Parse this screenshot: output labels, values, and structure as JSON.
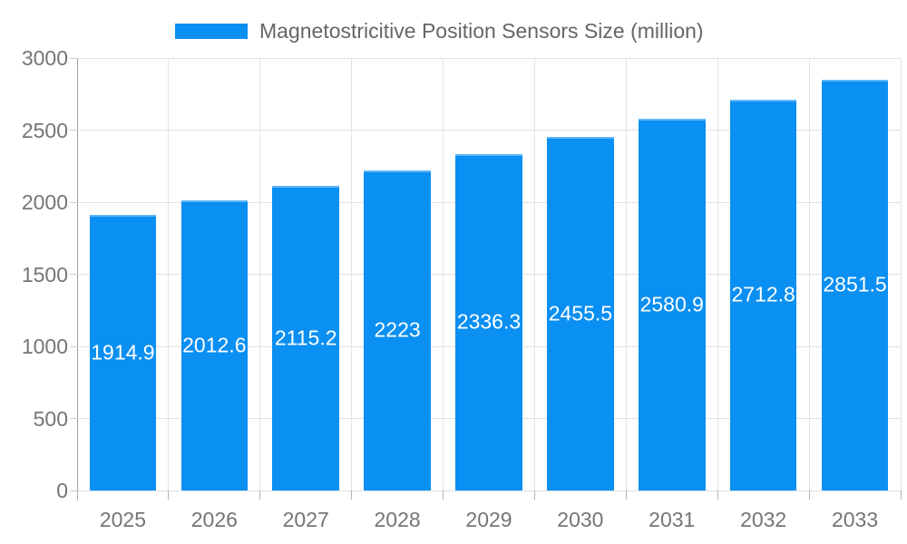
{
  "colors": {
    "accent": "#0a8ff2",
    "bar_value_text": "#ffffff",
    "axis_text": "#757575",
    "legend_text": "#666666",
    "gridline": "#e0e0e0",
    "axis_line": "#9e9e9e",
    "background": "#ffffff"
  },
  "chart_data": {
    "type": "bar",
    "title": "",
    "legend": {
      "position": "top",
      "entries": [
        {
          "label": "Magnetostricitive Position Sensors Size (million)",
          "color": "#0a8ff2",
          "marker": "rect"
        }
      ]
    },
    "categories": [
      "2025",
      "2026",
      "2027",
      "2028",
      "2029",
      "2030",
      "2031",
      "2032",
      "2033"
    ],
    "series": [
      {
        "name": "Magnetostricitive Position Sensors Size (million)",
        "color": "#0a8ff2",
        "values": [
          1914.9,
          2012.6,
          2115.2,
          2223,
          2336.3,
          2455.5,
          2580.9,
          2712.8,
          2851.5
        ],
        "value_labels": [
          "1914.9",
          "2012.6",
          "2115.2",
          "2223",
          "2336.3",
          "2455.5",
          "2580.9",
          "2712.8",
          "2851.5"
        ],
        "value_label_position": "inside-center"
      }
    ],
    "xlabel": "",
    "ylabel": "",
    "ylim": [
      0,
      3000
    ],
    "yticks": [
      {
        "value": 0,
        "label": "0"
      },
      {
        "value": 500,
        "label": "500"
      },
      {
        "value": 1000,
        "label": "1000"
      },
      {
        "value": 1500,
        "label": "1500"
      },
      {
        "value": 2000,
        "label": "2000"
      },
      {
        "value": 2500,
        "label": "2500"
      },
      {
        "value": 3000,
        "label": "3000"
      }
    ],
    "grid": true,
    "grid_vertical": true
  }
}
